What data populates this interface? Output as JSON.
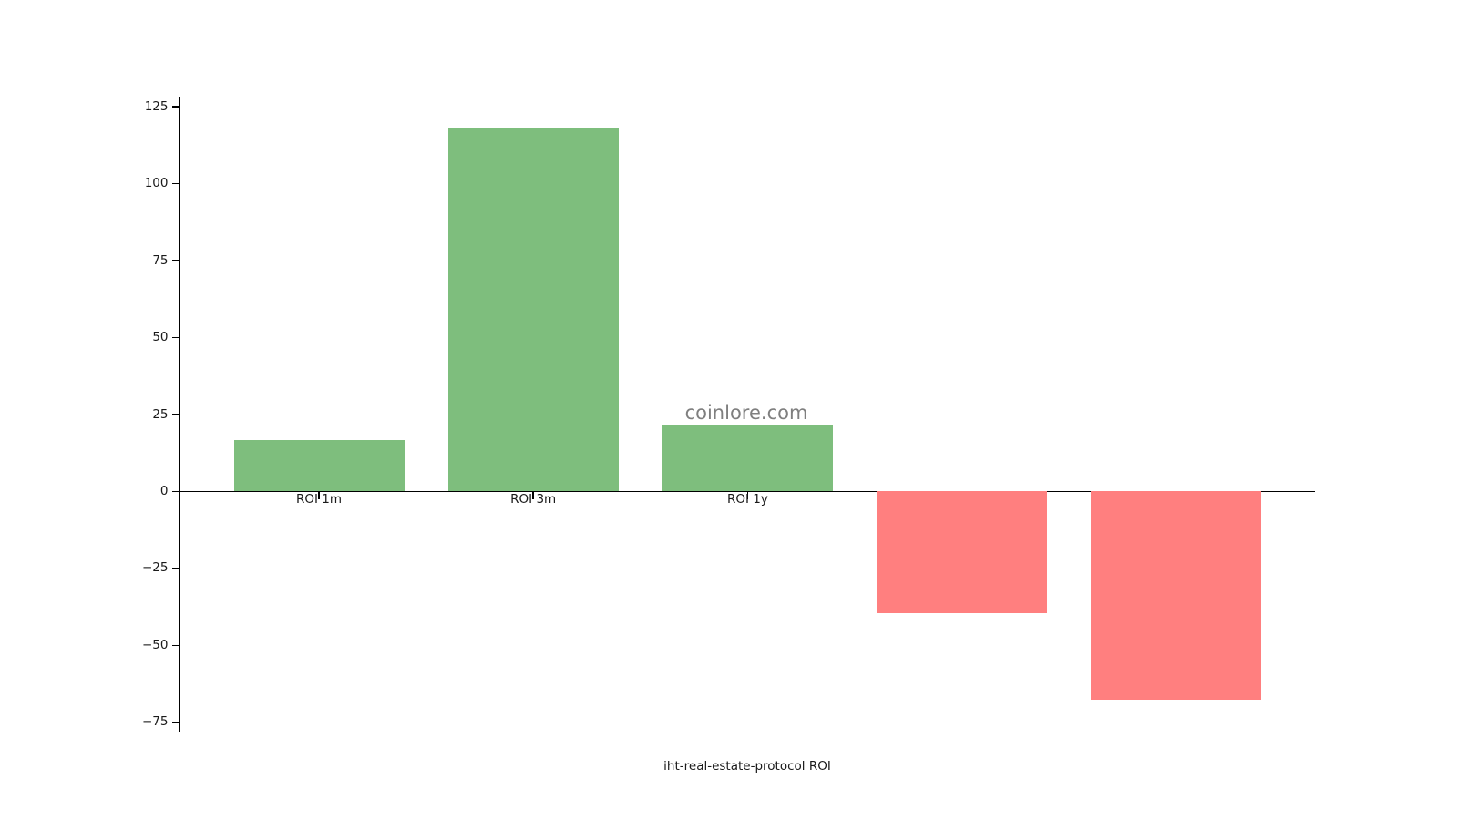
{
  "chart_data": {
    "type": "bar",
    "title": "iht-real-estate-protocol ROI",
    "watermark": "coinlore.com",
    "categories": [
      "ROI 1m",
      "ROI 3m",
      "ROI 1y",
      "",
      ""
    ],
    "values": [
      16.6,
      118.2,
      21.6,
      -39.6,
      -67.6
    ],
    "xlabel": "",
    "ylabel": "",
    "y_ticks": [
      125,
      100,
      75,
      50,
      25,
      0,
      -25,
      -50,
      -75
    ],
    "ylim": [
      -78,
      128
    ],
    "grid": false,
    "legend_position": "none",
    "positive_color": "#7ebe7d",
    "negative_color": "#ff7f7f",
    "axis_color": "#000000",
    "text_color": "#1a1a1a",
    "watermark_color": "#7f7f7f",
    "background_color": "#ffffff"
  }
}
